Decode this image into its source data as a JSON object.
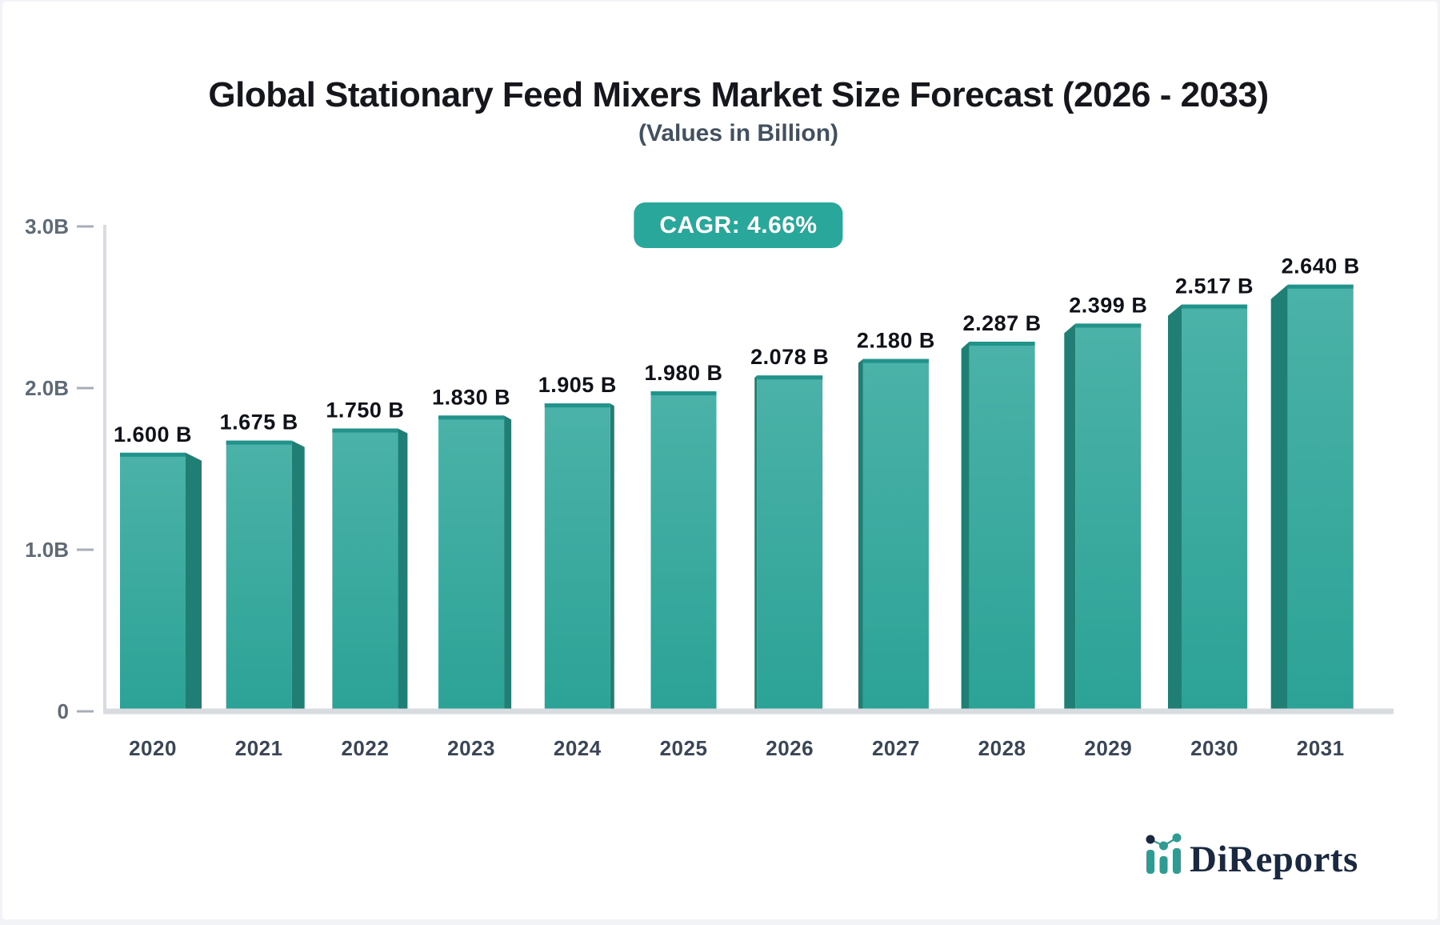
{
  "page": {
    "edge_color": "#F1F3F6",
    "card_color": "#FFFFFF"
  },
  "header": {
    "title": "Global Stationary Feed Mixers Market Size Forecast (2026 - 2033)",
    "subtitle": "(Values in Billion)"
  },
  "badge": {
    "label": "CAGR: 4.66%",
    "color": "#2AA79B",
    "text_color": "#FFFFFF"
  },
  "chart_data": {
    "type": "bar",
    "title": "Global Stationary Feed Mixers Market Size Forecast (2026 - 2033)",
    "subtitle": "(Values in Billion)",
    "annotation": "CAGR: 4.66%",
    "categories": [
      "2020",
      "2021",
      "2022",
      "2023",
      "2024",
      "2025",
      "2026",
      "2027",
      "2028",
      "2029",
      "2030",
      "2031"
    ],
    "values": [
      1.6,
      1.675,
      1.75,
      1.83,
      1.905,
      1.98,
      2.078,
      2.18,
      2.287,
      2.399,
      2.517,
      2.64
    ],
    "value_labels": [
      "1.600 B",
      "1.675 B",
      "1.750 B",
      "1.830 B",
      "1.905 B",
      "1.980 B",
      "2.078 B",
      "2.180 B",
      "2.287 B",
      "2.399 B",
      "2.517 B",
      "2.640 B"
    ],
    "unit": "B",
    "ylim": [
      0,
      3
    ],
    "ytick_values": [
      0,
      1,
      2,
      3
    ],
    "ytick_labels": [
      "0",
      "1.0B",
      "2.0B",
      "3.0B"
    ],
    "grid": false,
    "legend": null,
    "bar_style": "3d-perspective",
    "colors": {
      "face_top": "#4BB2A8",
      "face_bottom": "#2CA296",
      "top_edge": "#22938A",
      "side": "#1F7F75",
      "axis": "#D8DBE0",
      "tick_dash": "#A8AEB7",
      "tick_text": "#5F6A77",
      "xlabel_text": "#3A4656",
      "value_text": "#0F1319"
    }
  },
  "footer": {
    "brand": "DiReports",
    "logo_teal": "#2E9C92",
    "logo_navy": "#1A2940"
  }
}
